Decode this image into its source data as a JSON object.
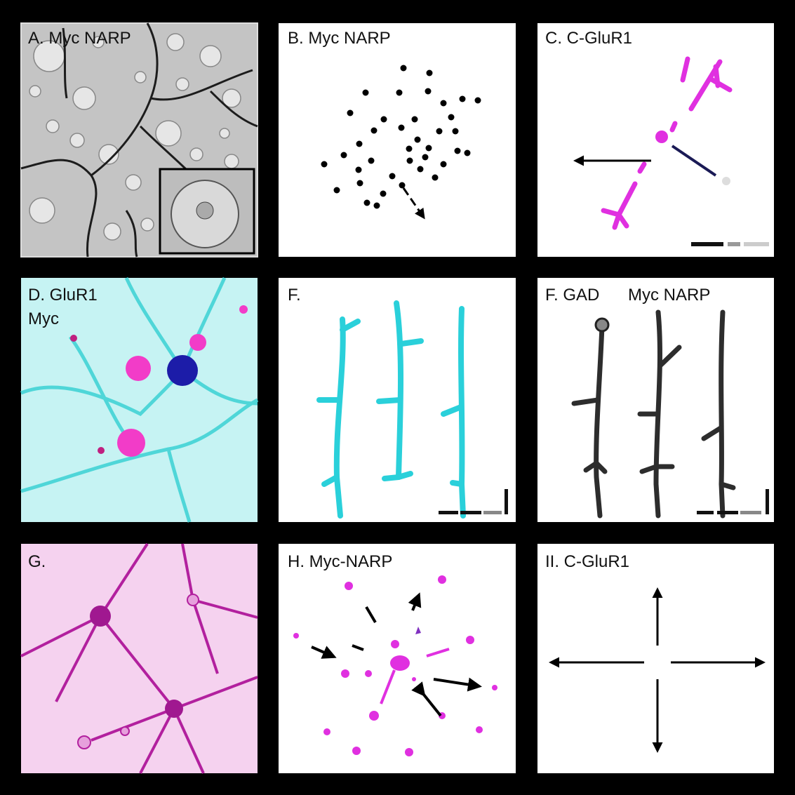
{
  "panels": [
    {
      "label": "A. Myc NARP"
    },
    {
      "label": "B. Myc NARP"
    },
    {
      "label": "C. C-GluR1"
    },
    {
      "label": "D. GluR1",
      "sublabel": "Myc"
    },
    {
      "label": "F."
    },
    {
      "label": "F. GAD",
      "sublabel": "Myc NARP"
    },
    {
      "label": "G."
    },
    {
      "label": "H. Myc-NARP"
    },
    {
      "label": "II. C-GluR1"
    }
  ]
}
